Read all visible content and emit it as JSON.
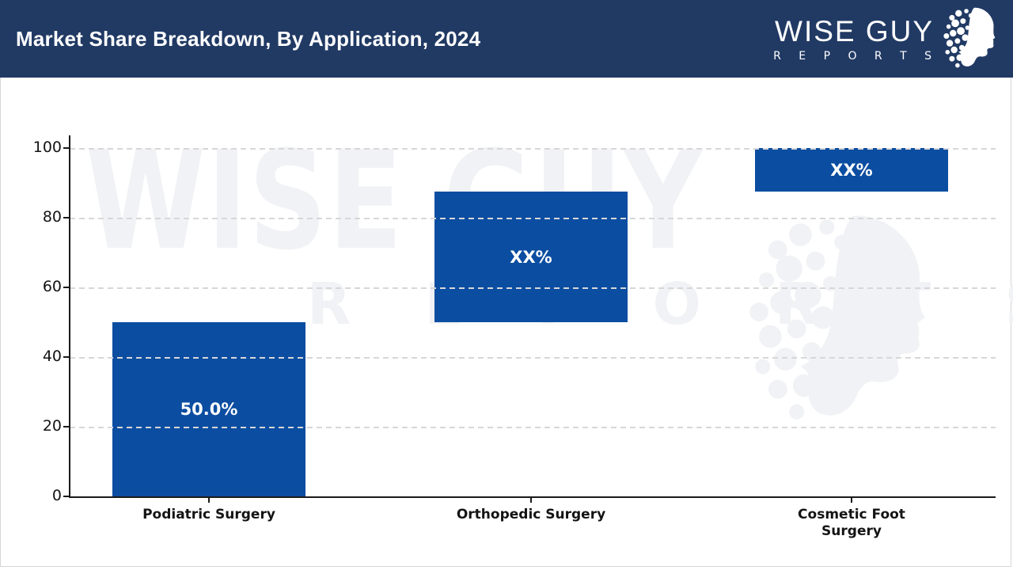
{
  "header": {
    "title": "Market Share Breakdown, By Application, 2024",
    "logo": {
      "brand_top": "WISE GUY",
      "brand_bottom": "R E P O R T S"
    }
  },
  "watermark": {
    "text_large": "WISE GUY",
    "text_small": "R E P O R T S"
  },
  "chart_data": {
    "type": "bar",
    "variant": "waterfall-stacked-segments",
    "title": "Market Share Breakdown, By Application, 2024",
    "categories": [
      "Podiatric Surgery",
      "Orthopedic Surgery",
      "Cosmetic Foot Surgery"
    ],
    "segments": [
      {
        "category": "Podiatric Surgery",
        "start": 0,
        "end": 50,
        "label": "50.0%"
      },
      {
        "category": "Orthopedic Surgery",
        "start": 50,
        "end": 87.5,
        "label": "XX%"
      },
      {
        "category": "Cosmetic Foot Surgery",
        "start": 87.5,
        "end": 100,
        "label": "XX%"
      }
    ],
    "xlabel": "",
    "ylabel": "",
    "ylim": [
      0,
      100
    ],
    "yticks": [
      0,
      20,
      40,
      60,
      80,
      100
    ],
    "grid": "horizontal-dashed",
    "legend": "none",
    "colors": {
      "bar": "#0b4da1",
      "bar_label": "#ffffff",
      "gridline": "#d7d7d7",
      "axis": "#1a1a1a",
      "header_bg": "#213a64",
      "watermark": "#f1f2f5"
    }
  }
}
